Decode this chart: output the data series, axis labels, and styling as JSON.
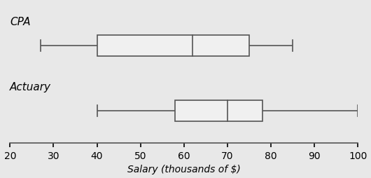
{
  "xlabel": "Salary (thousands of $)",
  "xlim": [
    20,
    100
  ],
  "xticks": [
    20,
    30,
    40,
    50,
    60,
    70,
    80,
    90,
    100
  ],
  "background_color": "#e8e8e8",
  "box_facecolor": "#f0f0f0",
  "line_color": "#555555",
  "boxes": [
    {
      "label": "CPA",
      "min": 27,
      "q1": 40,
      "median": 62,
      "q3": 75,
      "max": 85
    },
    {
      "label": "Actuary",
      "min": 40,
      "q1": 58,
      "median": 70,
      "q3": 78,
      "max": 100
    }
  ],
  "label_fontsize": 11,
  "xlabel_fontsize": 10,
  "tick_fontsize": 10,
  "lw": 1.2
}
